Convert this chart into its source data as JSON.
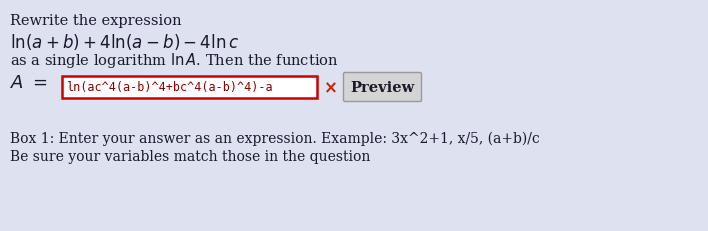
{
  "background_color": "#dde1f0",
  "line1": "Rewrite the expression",
  "line2_math": "$\\ln(a + b) + 4\\ln(a - b) - 4\\ln c$",
  "line3": "as a single logarithm $\\ln A$. Then the function",
  "label_A": "$A\\ =$",
  "input_text": "ln(ac^4(a-b)^4+bc^4(a-b)^4)-a",
  "input_border_color": "#cc0000",
  "input_bg_color": "#ffffff",
  "x_mark": "×",
  "preview_text": "Preview",
  "preview_bg": "#d4d4d4",
  "preview_border": "#999999",
  "footer1": "Box 1: Enter your answer as an expression. Example: 3x^2+1, x/5, (a+b)/c",
  "footer2": "Be sure your variables match those in the question",
  "text_color": "#1a1a2e",
  "input_text_color": "#8b0000",
  "x_color": "#cc2200",
  "font_size_main": 10.5,
  "font_size_math": 12,
  "font_size_A": 13,
  "font_size_input": 8.5,
  "font_size_footer": 10,
  "font_size_x": 12,
  "font_size_preview": 10.5
}
